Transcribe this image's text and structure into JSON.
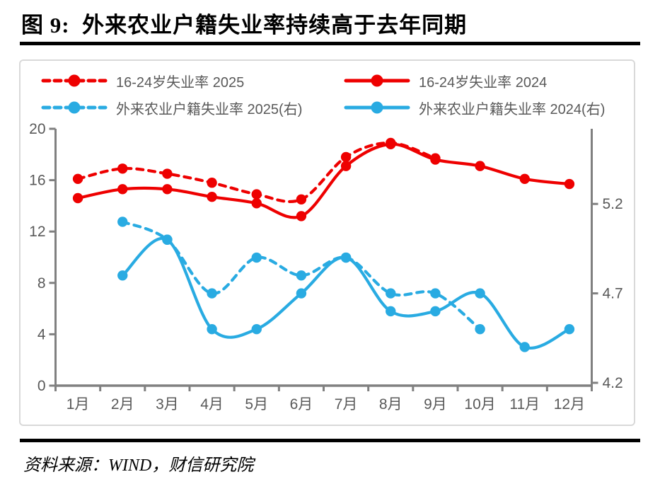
{
  "title": "图 9:  外来农业户籍失业率持续高于去年同期",
  "source": "资料来源：WIND，财信研究院",
  "chart_data": {
    "type": "line",
    "title": "外来农业户籍失业率持续高于去年同期",
    "categories": [
      "1月",
      "2月",
      "3月",
      "4月",
      "5月",
      "6月",
      "7月",
      "8月",
      "9月",
      "10月",
      "11月",
      "12月"
    ],
    "left_axis": {
      "min": 0,
      "max": 20,
      "ticks": [
        0,
        4,
        8,
        12,
        16,
        20
      ]
    },
    "right_axis": {
      "min": 4.2,
      "max": 5.62,
      "ticks": [
        4.2,
        4.7,
        5.2
      ]
    },
    "grid": false,
    "legend_position": "top-left",
    "smooth_lines": true,
    "axis_color": "#808080",
    "text_color": "#595959",
    "series": [
      {
        "name": "16-24岁失业率 2025",
        "color": "#ee0000",
        "style": "dashed",
        "axis": "left",
        "values": [
          16.1,
          16.9,
          16.5,
          15.8,
          14.9,
          14.5,
          17.8,
          18.9,
          17.7,
          null,
          null,
          null
        ]
      },
      {
        "name": "16-24岁失业率 2024",
        "color": "#ee0000",
        "style": "solid",
        "axis": "left",
        "values": [
          14.6,
          15.3,
          15.3,
          14.7,
          14.2,
          13.2,
          17.1,
          18.8,
          17.6,
          17.1,
          16.1,
          15.7
        ]
      },
      {
        "name": "外来农业户籍失业率 2025(右)",
        "color": "#29abe2",
        "style": "dashed",
        "axis": "right",
        "values": [
          null,
          5.1,
          5.0,
          4.7,
          4.9,
          4.8,
          4.9,
          4.7,
          4.7,
          4.5,
          null,
          null
        ]
      },
      {
        "name": "外来农业户籍失业率 2024(右)",
        "color": "#29abe2",
        "style": "solid",
        "axis": "right",
        "values": [
          null,
          4.8,
          5.0,
          4.5,
          4.5,
          4.7,
          4.9,
          4.6,
          4.6,
          4.7,
          4.4,
          4.5
        ]
      }
    ]
  }
}
